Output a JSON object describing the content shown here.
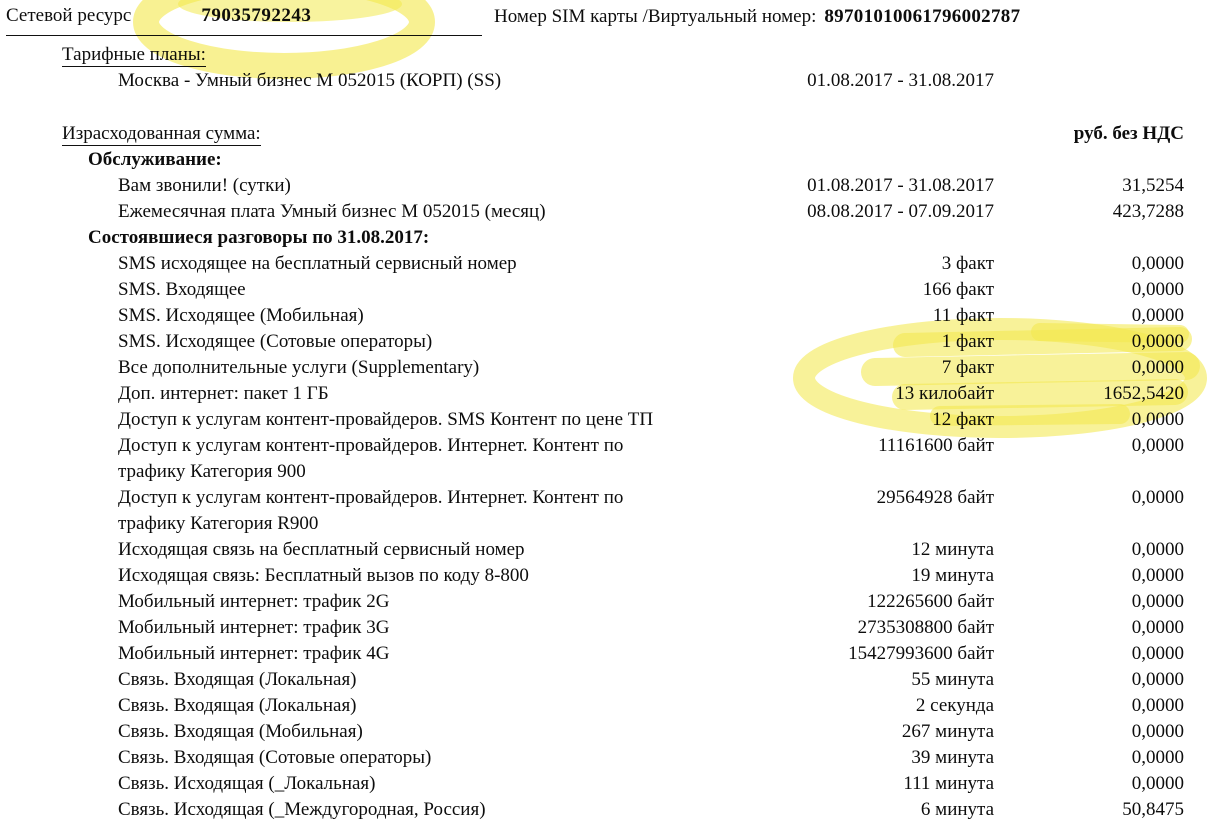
{
  "header": {
    "network_resource_label": "Сетевой ресурс",
    "network_resource_value": "79035792243",
    "sim_label": "Номер SIM карты /Виртуальный номер:",
    "sim_value": "89701010061796002787"
  },
  "tariff": {
    "title": "Тарифные планы:",
    "items": [
      {
        "name": "Москва - Умный бизнес М 052015 (КОРП) (SS)",
        "period": "01.08.2017 - 31.08.2017"
      }
    ]
  },
  "spent": {
    "title": "Израсходованная сумма:",
    "unit_note": "руб. без НДС",
    "sections": [
      {
        "title": "Обслуживание:",
        "rows": [
          {
            "label": "Вам звонили! (сутки)",
            "qty": "01.08.2017 - 31.08.2017",
            "amount": "31,5254"
          },
          {
            "label": "Ежемесячная плата Умный бизнес М 052015 (месяц)",
            "qty": "08.08.2017 - 07.09.2017",
            "amount": "423,7288"
          }
        ]
      },
      {
        "title": "Состоявшиеся разговоры по 31.08.2017:",
        "rows": [
          {
            "label": "SMS исходящее на бесплатный сервисный номер",
            "qty": "3 факт",
            "amount": "0,0000"
          },
          {
            "label": "SMS. Входящее",
            "qty": "166 факт",
            "amount": "0,0000"
          },
          {
            "label": "SMS. Исходящее (Мобильная)",
            "qty": "11 факт",
            "amount": "0,0000"
          },
          {
            "label": "SMS. Исходящее (Сотовые операторы)",
            "qty": "1 факт",
            "amount": "0,0000"
          },
          {
            "label": "Все дополнительные услуги (Supplementary)",
            "qty": "7 факт",
            "amount": "0,0000"
          },
          {
            "label": "Доп. интернет: пакет 1 ГБ",
            "qty": "13 килобайт",
            "amount": "1652,5420"
          },
          {
            "label": "Доступ к услугам контент-провайдеров. SMS Контент по цене ТП",
            "qty": "12 факт",
            "amount": "0,0000"
          },
          {
            "label": "Доступ к услугам контент-провайдеров. Интернет. Контент по\nтрафику Категория 900",
            "qty": "11161600 байт",
            "amount": "0,0000"
          },
          {
            "label": "Доступ к услугам контент-провайдеров. Интернет. Контент по\nтрафику Категория R900",
            "qty": "29564928 байт",
            "amount": "0,0000"
          },
          {
            "label": "Исходящая связь на бесплатный сервисный номер",
            "qty": "12 минута",
            "amount": "0,0000"
          },
          {
            "label": "Исходящая связь: Бесплатный вызов по коду 8-800",
            "qty": "19 минута",
            "amount": "0,0000"
          },
          {
            "label": "Мобильный интернет: трафик 2G",
            "qty": "122265600 байт",
            "amount": "0,0000"
          },
          {
            "label": "Мобильный интернет: трафик 3G",
            "qty": "2735308800 байт",
            "amount": "0,0000"
          },
          {
            "label": "Мобильный интернет: трафик 4G",
            "qty": "15427993600 байт",
            "amount": "0,0000"
          },
          {
            "label": "Связь. Входящая (Локальная)",
            "qty": "55 минута",
            "amount": "0,0000"
          },
          {
            "label": "Связь. Входящая (Локальная)",
            "qty": "2 секунда",
            "amount": "0,0000"
          },
          {
            "label": "Связь. Входящая (Мобильная)",
            "qty": "267 минута",
            "amount": "0,0000"
          },
          {
            "label": "Связь. Входящая (Сотовые операторы)",
            "qty": "39 минута",
            "amount": "0,0000"
          },
          {
            "label": "Связь. Исходящая (_Локальная)",
            "qty": "111 минута",
            "amount": "0,0000"
          },
          {
            "label": "Связь. Исходящая (_Междугородная, Россия)",
            "qty": "6 минута",
            "amount": "50,8475"
          }
        ]
      }
    ]
  },
  "highlight": {
    "color": "#f3e94f"
  }
}
